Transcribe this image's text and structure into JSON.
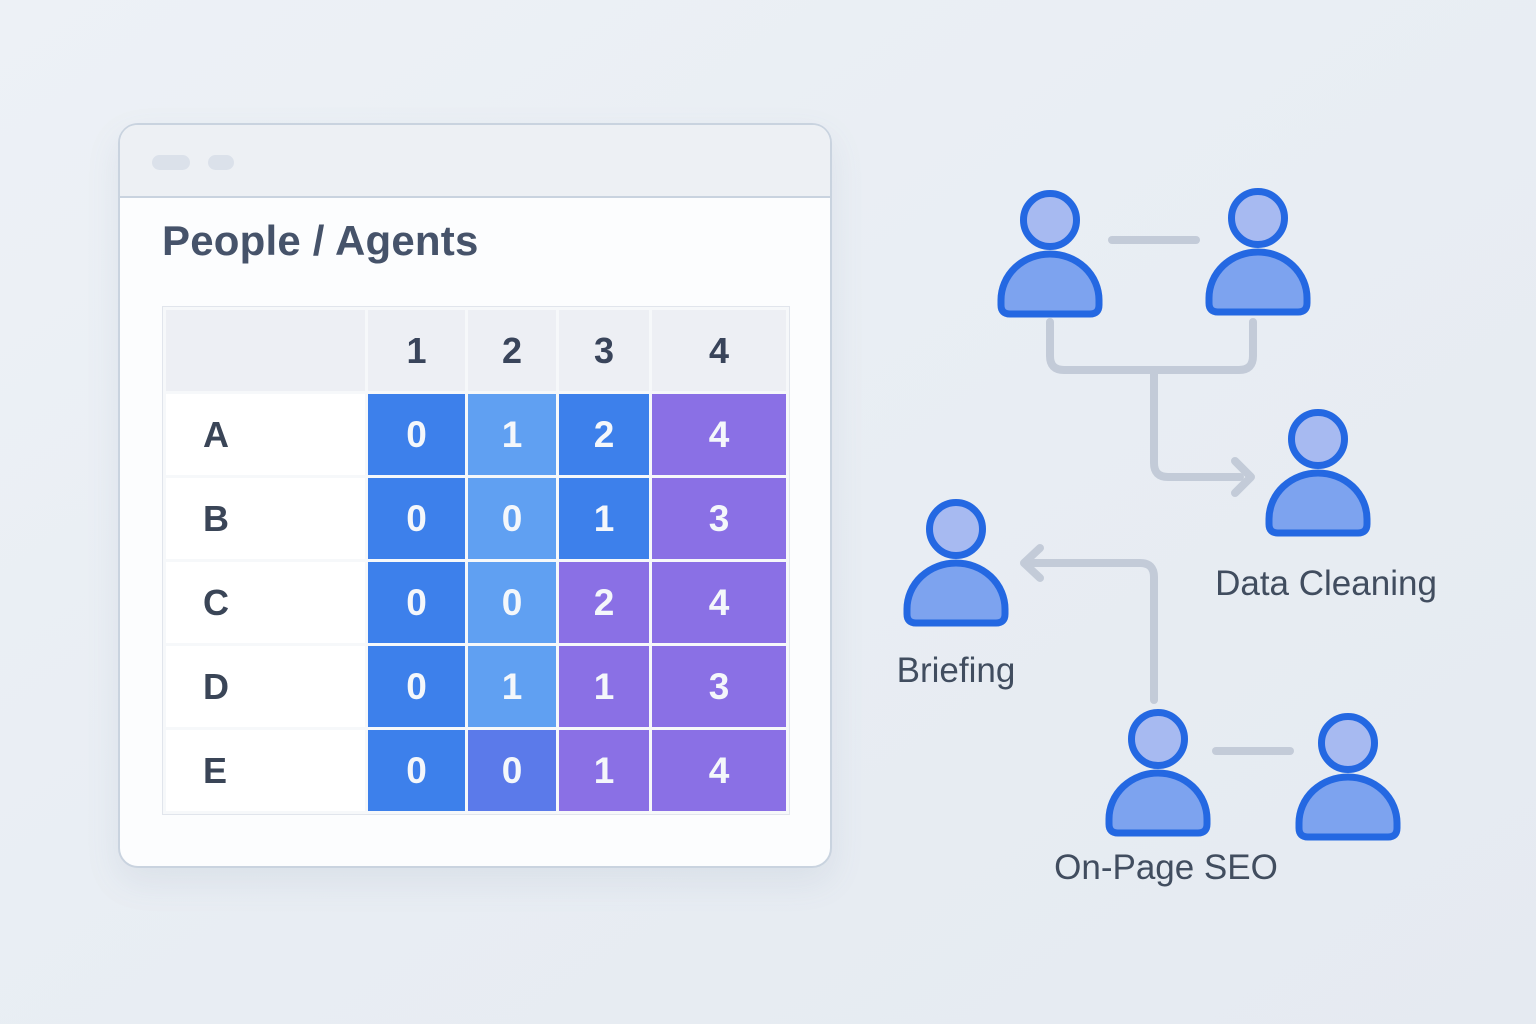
{
  "window": {
    "title": "People / Agents"
  },
  "table": {
    "column_headers": [
      "1",
      "2",
      "3",
      "4"
    ],
    "rows": [
      {
        "label": "A",
        "cells": [
          {
            "value": "0",
            "color": "blue"
          },
          {
            "value": "1",
            "color": "lightBlue"
          },
          {
            "value": "2",
            "color": "blue"
          },
          {
            "value": "4",
            "color": "purple"
          }
        ]
      },
      {
        "label": "B",
        "cells": [
          {
            "value": "0",
            "color": "blue"
          },
          {
            "value": "0",
            "color": "lightBlue"
          },
          {
            "value": "1",
            "color": "blue"
          },
          {
            "value": "3",
            "color": "purple"
          }
        ]
      },
      {
        "label": "C",
        "cells": [
          {
            "value": "0",
            "color": "blue"
          },
          {
            "value": "0",
            "color": "lightBlue"
          },
          {
            "value": "2",
            "color": "purple"
          },
          {
            "value": "4",
            "color": "purple"
          }
        ]
      },
      {
        "label": "D",
        "cells": [
          {
            "value": "0",
            "color": "blue"
          },
          {
            "value": "1",
            "color": "lightBlue"
          },
          {
            "value": "1",
            "color": "purple"
          },
          {
            "value": "3",
            "color": "purple"
          }
        ]
      },
      {
        "label": "E",
        "cells": [
          {
            "value": "0",
            "color": "blue"
          },
          {
            "value": "0",
            "color": "blueViolet"
          },
          {
            "value": "1",
            "color": "purple"
          },
          {
            "value": "4",
            "color": "purple"
          }
        ]
      }
    ]
  },
  "diagram": {
    "labels": {
      "data_cleaning": "Data Cleaning",
      "briefing": "Briefing",
      "on_page_seo": "On-Page SEO"
    }
  },
  "colors": {
    "blue": "#3D80EB",
    "lightBlue": "#60A0F2",
    "blueViolet": "#5B7AEA",
    "purple": "#8A70E5",
    "iconStroke": "#2468E2",
    "iconHead": "#A7BAF1",
    "iconBody": "#7DA3EF",
    "connector": "#C3CBD8"
  }
}
